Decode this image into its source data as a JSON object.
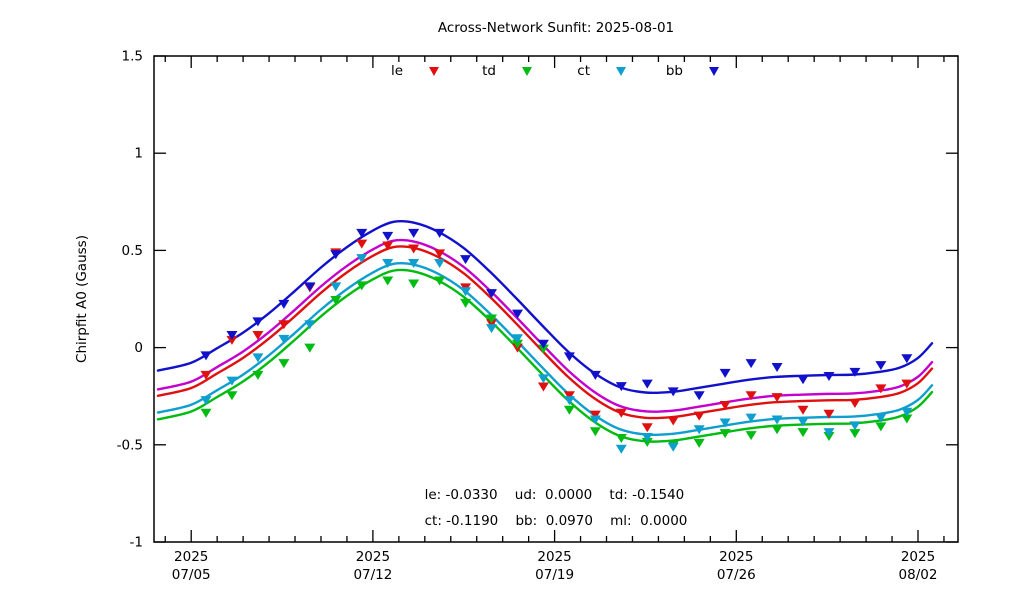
{
  "chart_data": {
    "type": "line",
    "title": "Across-Network Sunfit: 2025-08-01",
    "xlabel": "",
    "ylabel": "Chirpfit A0 (Gauss)",
    "ylim": [
      -1,
      1.5
    ],
    "grid": false,
    "y_tick_values": [
      1.5,
      1,
      0.5,
      0,
      -0.5,
      -1
    ],
    "y_tick_labels": [
      "1.5",
      "1",
      "0.5",
      "0",
      "-0.5",
      "-1"
    ],
    "x_axis": {
      "start_date": "2025-07-05",
      "range_days": [
        -1.43,
        29.55
      ],
      "minor_tick_every_days": 1,
      "major_tick_days": [
        0,
        7,
        14,
        21,
        28
      ],
      "major_tick_labels": [
        {
          "year": "2025",
          "date": "07/05"
        },
        {
          "year": "2025",
          "date": "07/12"
        },
        {
          "year": "2025",
          "date": "07/19"
        },
        {
          "year": "2025",
          "date": "07/26"
        },
        {
          "year": "2025",
          "date": "08/02"
        }
      ]
    },
    "legend": {
      "position": "top-center",
      "items": [
        {
          "label": "le",
          "color": "#e01010"
        },
        {
          "label": "td",
          "color": "#00bb11"
        },
        {
          "label": "ct",
          "color": "#0f9fce"
        },
        {
          "label": "bb",
          "color": "#1111cc"
        }
      ]
    },
    "fit_annotation": {
      "line1": "le: -0.0330    ud:  0.0000    td: -0.1540",
      "line2": "ct: -0.1190    bb:  0.0970    ml:  0.0000",
      "values": {
        "le": -0.033,
        "ud": 0.0,
        "td": -0.154,
        "ct": -0.119,
        "bb": 0.097,
        "ml": 0.0
      }
    },
    "base_curve": {
      "days": [
        -1.28,
        0,
        1,
        2,
        3,
        4,
        5,
        6,
        7,
        7.8,
        8.6,
        9.5,
        10.5,
        11.5,
        12.5,
        13.5,
        14.5,
        15.5,
        16.5,
        17.5,
        18.5,
        19.5,
        20.5,
        21.5,
        22.5,
        23.5,
        24.5,
        25.5,
        26.5,
        27.3,
        28.0,
        28.54
      ],
      "values": [
        -0.215,
        -0.175,
        -0.1,
        -0.02,
        0.08,
        0.195,
        0.315,
        0.42,
        0.505,
        0.55,
        0.545,
        0.5,
        0.415,
        0.295,
        0.16,
        0.02,
        -0.115,
        -0.225,
        -0.3,
        -0.328,
        -0.325,
        -0.305,
        -0.283,
        -0.262,
        -0.248,
        -0.242,
        -0.238,
        -0.236,
        -0.222,
        -0.2,
        -0.15,
        -0.075
      ]
    },
    "curves": [
      {
        "name": "le",
        "color": "#e01010",
        "offset": -0.033
      },
      {
        "name": "td",
        "color": "#00bb11",
        "offset": -0.154
      },
      {
        "name": "ct",
        "color": "#0f9fce",
        "offset": -0.119
      },
      {
        "name": "bb",
        "color": "#1111cc",
        "offset": 0.097
      },
      {
        "name": "ml",
        "color": "#c400cc",
        "offset": 0.0
      }
    ],
    "scatter_series": {
      "start_date": "2025-07-05",
      "first_point_day": 0.57,
      "step_days": 1,
      "series": [
        {
          "name": "le",
          "color": "#e01010",
          "values": [
            -0.14,
            0.04,
            0.065,
            0.12,
            0.31,
            0.49,
            0.535,
            0.525,
            0.51,
            0.485,
            0.31,
            0.125,
            0.0,
            -0.2,
            -0.245,
            -0.345,
            -0.335,
            -0.41,
            -0.375,
            -0.35,
            -0.295,
            -0.245,
            -0.255,
            -0.32,
            -0.34,
            -0.285,
            -0.21,
            -0.185
          ]
        },
        {
          "name": "td",
          "color": "#00bb11",
          "values": [
            -0.335,
            -0.245,
            -0.14,
            -0.08,
            0.0,
            0.245,
            0.32,
            0.345,
            0.33,
            0.345,
            0.23,
            0.15,
            0.02,
            -0.005,
            -0.32,
            -0.43,
            -0.465,
            -0.485,
            -0.5,
            -0.49,
            -0.44,
            -0.45,
            -0.42,
            -0.435,
            -0.455,
            -0.44,
            -0.405,
            -0.365
          ]
        },
        {
          "name": "ct",
          "color": "#0f9fce",
          "values": [
            -0.27,
            -0.17,
            -0.05,
            0.045,
            0.12,
            0.315,
            0.46,
            0.435,
            0.435,
            0.435,
            0.29,
            0.1,
            0.048,
            -0.158,
            -0.27,
            -0.37,
            -0.52,
            -0.46,
            -0.51,
            -0.42,
            -0.385,
            -0.36,
            -0.37,
            -0.38,
            -0.435,
            -0.4,
            -0.36,
            -0.33
          ]
        },
        {
          "name": "bb",
          "color": "#1111cc",
          "values": [
            -0.04,
            0.065,
            0.135,
            0.225,
            0.315,
            0.48,
            0.59,
            0.575,
            0.59,
            0.59,
            0.455,
            0.28,
            0.175,
            0.02,
            -0.045,
            -0.14,
            -0.198,
            -0.185,
            -0.225,
            -0.245,
            -0.13,
            -0.08,
            -0.1,
            -0.163,
            -0.146,
            -0.125,
            -0.09,
            -0.055
          ]
        }
      ]
    }
  }
}
